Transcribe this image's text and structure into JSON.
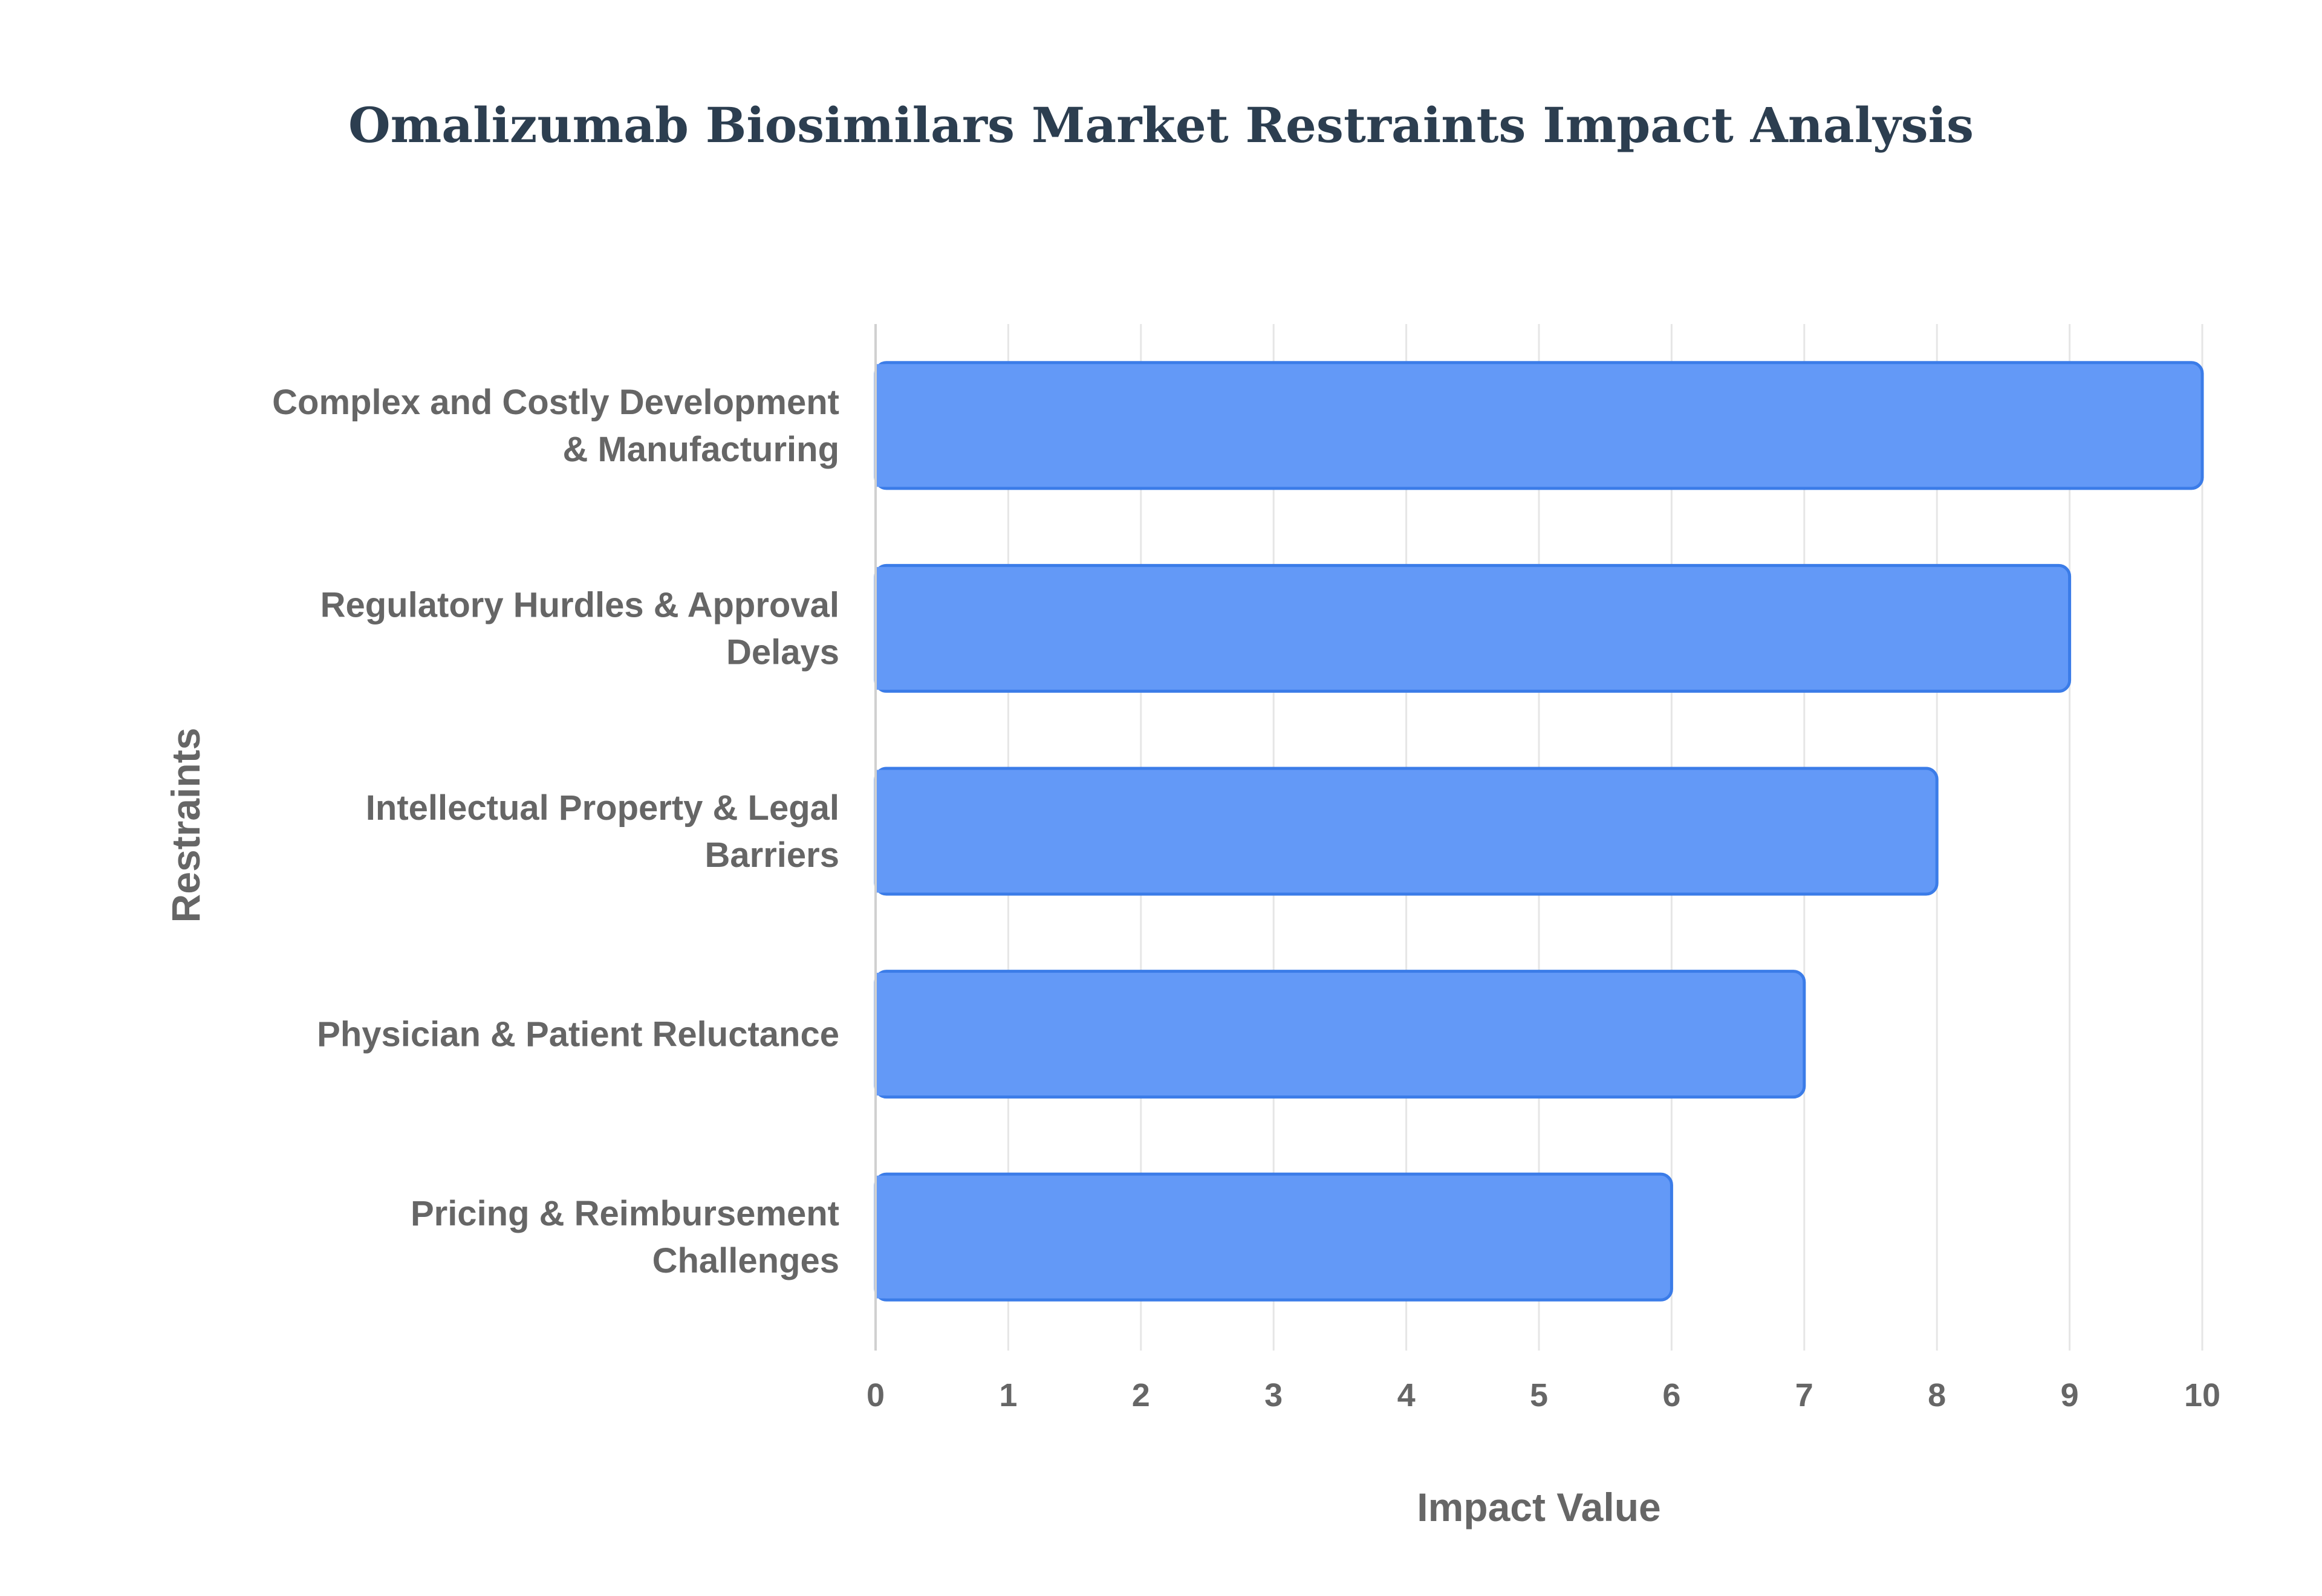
{
  "chart_data": {
    "type": "bar",
    "orientation": "horizontal",
    "title": "Omalizumab Biosimilars Market Restraints Impact Analysis",
    "xlabel": "Impact Value",
    "ylabel": "Restraints",
    "xlim": [
      0,
      10
    ],
    "xticks": [
      "0",
      "1",
      "2",
      "3",
      "4",
      "5",
      "6",
      "7",
      "8",
      "9",
      "10"
    ],
    "grid": true,
    "legend": "none",
    "categories": [
      [
        "Complex and Costly Development",
        "& Manufacturing"
      ],
      [
        "Regulatory Hurdles & Approval",
        "Delays"
      ],
      [
        "Intellectual Property & Legal",
        "Barriers"
      ],
      [
        "Physician & Patient Reluctance"
      ],
      [
        "Pricing & Reimbursement",
        "Challenges"
      ]
    ],
    "values": [
      10,
      9,
      8,
      7,
      6
    ]
  },
  "colors": {
    "bar_fill": "#6399f7",
    "bar_stroke": "#3b7ce8",
    "grid": "#e6e6e6",
    "axis": "#d0d0d0",
    "label_text": "#666666",
    "title_text": "#2c3e50"
  }
}
